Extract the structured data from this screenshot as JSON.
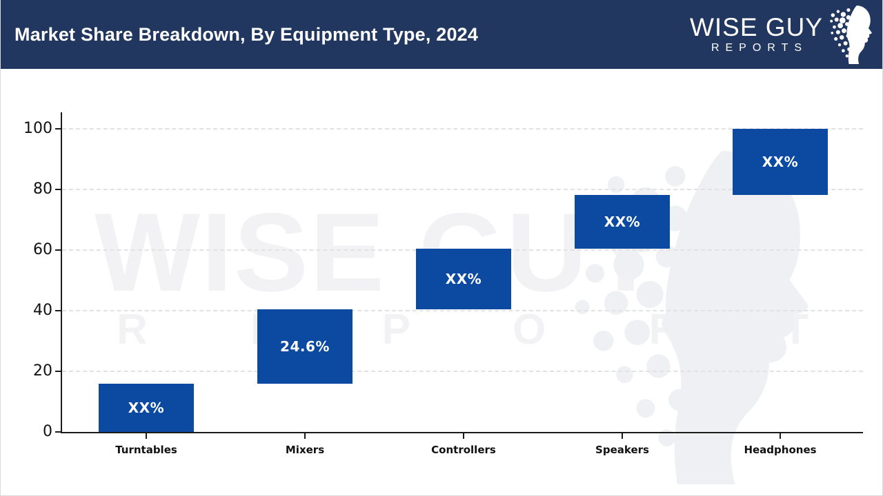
{
  "header": {
    "title": "Market Share Breakdown, By Equipment Type, 2024",
    "logo": {
      "name": "WISE GUY",
      "subname": "REPORTS"
    },
    "bg_color": "#21375f"
  },
  "watermark": {
    "line1": "WISE GUY",
    "line2": "R E P O R T S"
  },
  "chart_data": {
    "type": "bar",
    "subtype": "waterfall",
    "title": "Market Share Breakdown, By Equipment Type, 2024",
    "categories": [
      "Turntables",
      "Mixers",
      "Controllers",
      "Speakers",
      "Headphones"
    ],
    "bars": [
      {
        "category": "Turntables",
        "start": 0,
        "end": 15.8,
        "value_label": "XX%"
      },
      {
        "category": "Mixers",
        "start": 15.8,
        "end": 40.4,
        "value_label": "24.6%"
      },
      {
        "category": "Controllers",
        "start": 40.4,
        "end": 60.4,
        "value_label": "XX%"
      },
      {
        "category": "Speakers",
        "start": 60.4,
        "end": 78.1,
        "value_label": "XX%"
      },
      {
        "category": "Headphones",
        "start": 78.1,
        "end": 100,
        "value_label": "XX%"
      }
    ],
    "yticks": [
      0,
      20,
      40,
      60,
      80,
      100
    ],
    "ylim": [
      0,
      105.5
    ],
    "xlabel": "",
    "ylabel": "",
    "grid": "horizontal-dashed",
    "legend": null,
    "bar_color": "#0b4aa0",
    "bar_label_color": "#ffffff"
  }
}
